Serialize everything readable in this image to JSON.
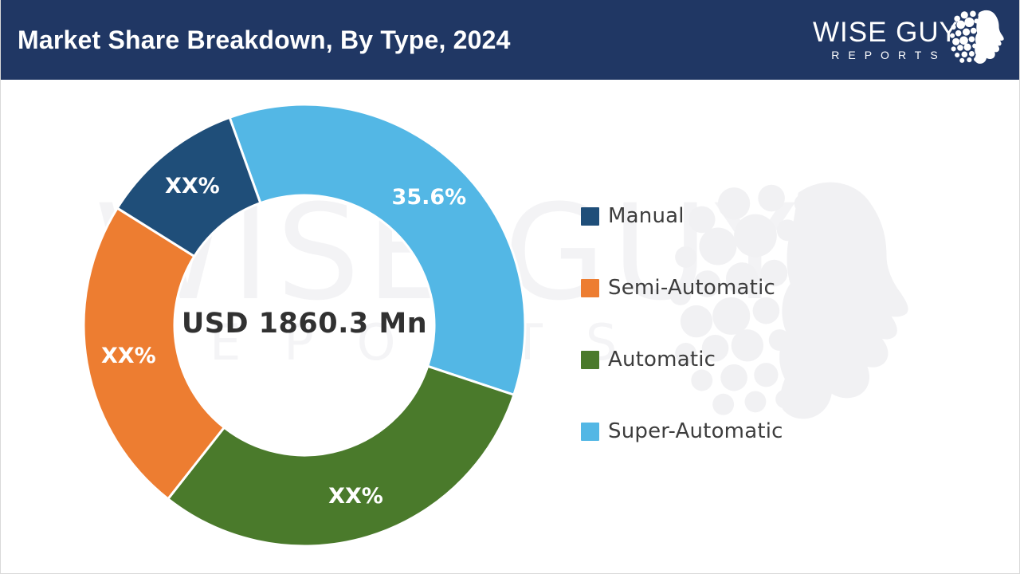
{
  "header": {
    "title": "Market Share Breakdown, By Type, 2024",
    "logo": {
      "line1": "WISE GUY",
      "line2": "REPORTS"
    }
  },
  "watermark": {
    "line1": "WISE GUY",
    "line2": "REPORTS"
  },
  "chart_data": {
    "type": "donut",
    "title": "Market Share Breakdown, By Type, 2024",
    "center_label": "USD 1860.3 Mn",
    "start_angle_deg": -19.8,
    "direction": "clockwise",
    "segments": [
      {
        "label": "Super-Automatic",
        "value_pct": 35.6,
        "display_label": "35.6%",
        "color": "#53b7e5"
      },
      {
        "label": "Automatic",
        "value_pct": 30.5,
        "display_label": "XX%",
        "color": "#4a7a2b"
      },
      {
        "label": "Semi-Automatic",
        "value_pct": 23.3,
        "display_label": "XX%",
        "color": "#ed7d31"
      },
      {
        "label": "Manual",
        "value_pct": 10.6,
        "display_label": "XX%",
        "color": "#1f4e79"
      }
    ],
    "legend_position": "right"
  },
  "legend": {
    "items": [
      {
        "label": "Manual",
        "color": "#1f4e79"
      },
      {
        "label": "Semi-Automatic",
        "color": "#ed7d31"
      },
      {
        "label": "Automatic",
        "color": "#4a7a2b"
      },
      {
        "label": "Super-Automatic",
        "color": "#53b7e5"
      }
    ]
  }
}
